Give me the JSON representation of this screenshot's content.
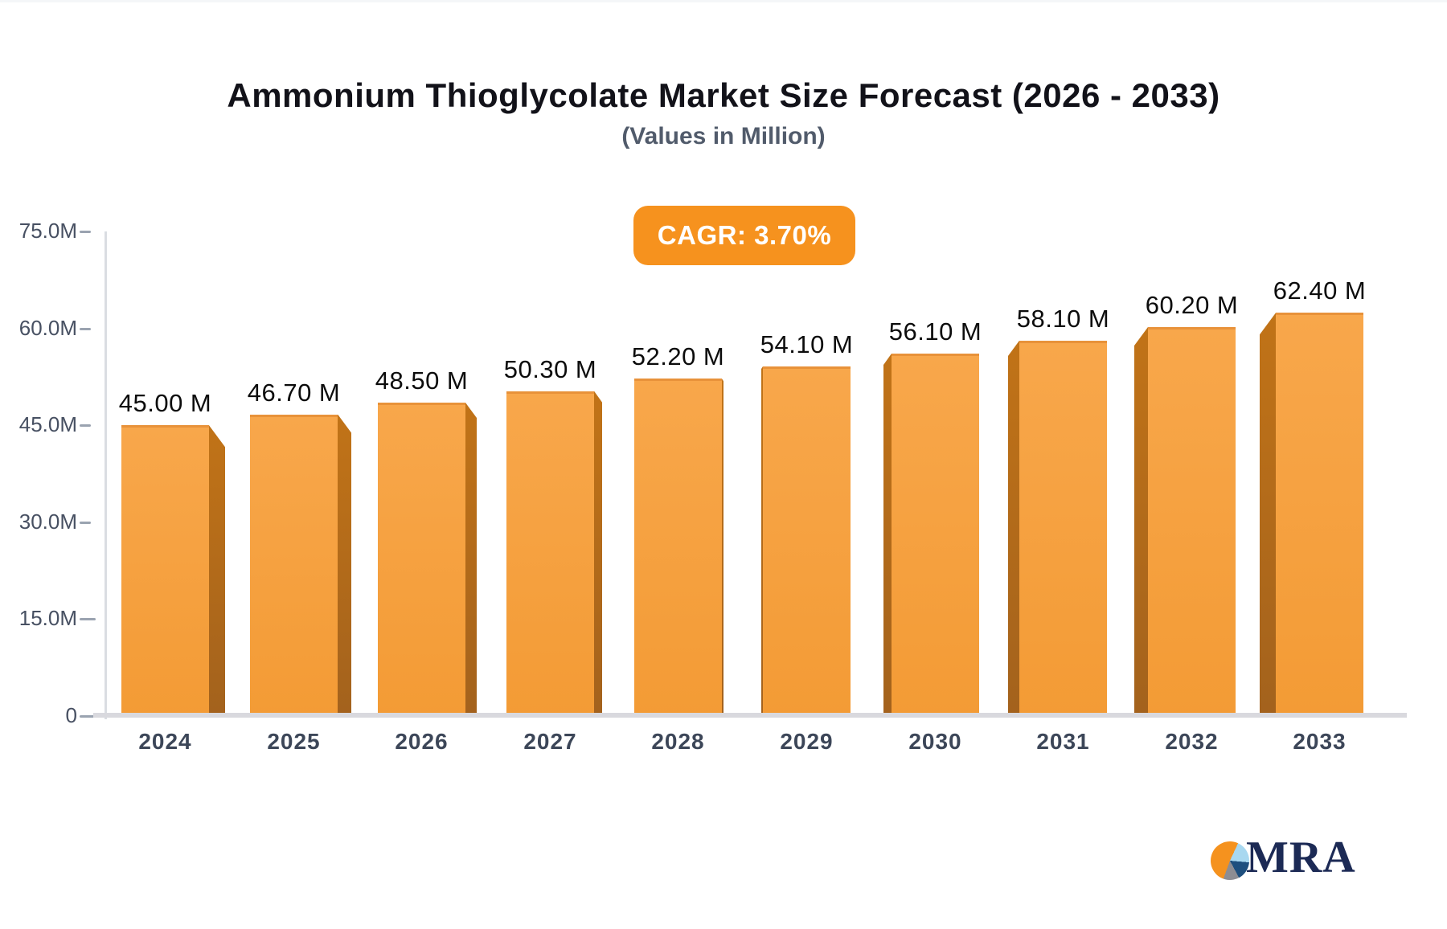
{
  "header": {
    "title": "Ammonium Thioglycolate Market Size Forecast (2026 - 2033)",
    "subtitle": "(Values in Million)"
  },
  "badge": {
    "label": "CAGR: 3.70%",
    "background": "#f6921e",
    "text_color": "#ffffff"
  },
  "chart_data": {
    "type": "bar",
    "title": "Ammonium Thioglycolate Market Size Forecast (2026 - 2033)",
    "subtitle": "(Values in Million)",
    "xlabel": "",
    "ylabel": "",
    "ylim": [
      0,
      75
    ],
    "grid": false,
    "legend": "none",
    "categories": [
      "2024",
      "2025",
      "2026",
      "2027",
      "2028",
      "2029",
      "2030",
      "2031",
      "2032",
      "2033"
    ],
    "values": [
      45.0,
      46.7,
      48.5,
      50.3,
      52.2,
      54.1,
      56.1,
      58.1,
      60.2,
      62.4
    ],
    "value_labels": [
      "45.00 M",
      "46.70 M",
      "48.50 M",
      "50.30 M",
      "52.20 M",
      "54.10 M",
      "56.10 M",
      "58.10 M",
      "60.20 M",
      "62.40 M"
    ],
    "yticks": [
      {
        "label": "75.0M",
        "value": 75
      },
      {
        "label": "60.0M",
        "value": 60
      },
      {
        "label": "45.0M",
        "value": 45
      },
      {
        "label": "30.0M",
        "value": 30
      },
      {
        "label": "15.0M",
        "value": 15
      },
      {
        "label": "0",
        "value": 0
      }
    ],
    "colors": {
      "bar_face_top": "#f8a74b",
      "bar_face_bottom": "#f39b35",
      "bar_face_top_edge": "#e8923a",
      "bar_side_top": "#c17317",
      "bar_side_bottom": "#a3621d",
      "axis_line": "#dadde2",
      "baseline": "#d9d9de",
      "tick_dash": "#9aa3b0",
      "y_label_color": "#475062",
      "x_label_color": "#3c4658",
      "value_label_color": "#0c0c0c"
    }
  },
  "logo": {
    "text": "MRA",
    "text_color": "#1c2a55",
    "pie_orange": "#f5921e",
    "pie_light_blue": "#a8d8f0",
    "pie_navy": "#1e4f7e",
    "pie_gray": "#8d8d93"
  }
}
